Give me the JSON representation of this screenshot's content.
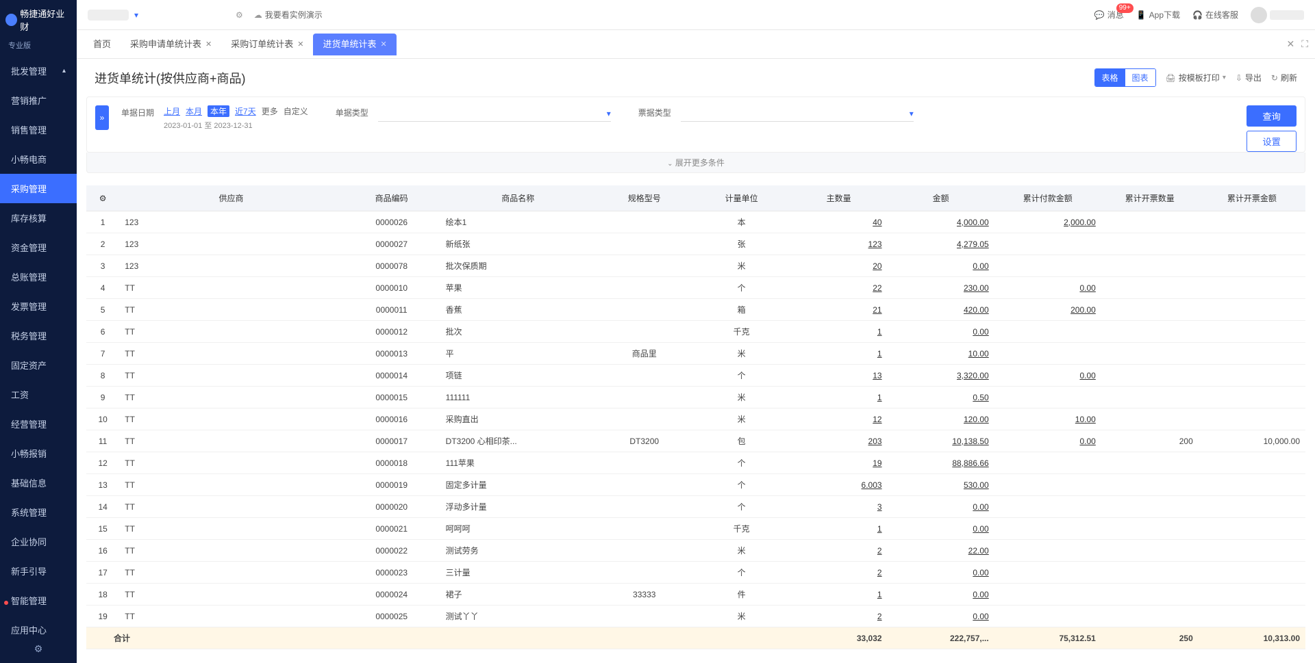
{
  "brand": {
    "name": "畅捷通好业财",
    "edition": "专业版"
  },
  "sidebar": {
    "items": [
      {
        "label": "批发管理",
        "expanded": true
      },
      {
        "label": "营销推广"
      },
      {
        "label": "销售管理"
      },
      {
        "label": "小畅电商"
      },
      {
        "label": "采购管理",
        "active": true
      },
      {
        "label": "库存核算"
      },
      {
        "label": "资金管理"
      },
      {
        "label": "总账管理"
      },
      {
        "label": "发票管理"
      },
      {
        "label": "税务管理"
      },
      {
        "label": "固定资产"
      },
      {
        "label": "工资"
      },
      {
        "label": "经营管理"
      },
      {
        "label": "小畅报销"
      },
      {
        "label": "基础信息"
      },
      {
        "label": "系统管理"
      },
      {
        "label": "企业协同"
      },
      {
        "label": "新手引导"
      },
      {
        "label": "智能管理",
        "dot": true
      },
      {
        "label": "应用中心"
      }
    ]
  },
  "topbar": {
    "demo": "我要看实例演示",
    "msg": "消息",
    "msg_badge": "99+",
    "app": "App下载",
    "service": "在线客服"
  },
  "tabs": {
    "items": [
      {
        "label": "首页",
        "closable": false
      },
      {
        "label": "采购申请单统计表",
        "closable": true
      },
      {
        "label": "采购订单统计表",
        "closable": true
      },
      {
        "label": "进货单统计表",
        "closable": true,
        "active": true
      }
    ]
  },
  "page": {
    "title": "进货单统计(按供应商+商品)",
    "toggle": {
      "a": "表格",
      "b": "图表"
    },
    "print": "按模板打印",
    "export": "导出",
    "refresh": "刷新"
  },
  "filter": {
    "date_label": "单据日期",
    "quick": [
      "上月",
      "本月",
      "本年",
      "近7天",
      "更多",
      "自定义"
    ],
    "quick_active": 2,
    "date_range": "2023-01-01 至 2023-12-31",
    "type_label": "单据类型",
    "invoice_label": "票据类型",
    "query": "查询",
    "settings": "设置",
    "expand": "展开更多条件"
  },
  "table": {
    "columns": [
      "供应商",
      "商品编码",
      "商品名称",
      "规格型号",
      "计量单位",
      "主数量",
      "金额",
      "累计付款金额",
      "累计开票数量",
      "累计开票金额"
    ],
    "rows": [
      {
        "i": 1,
        "supplier": "123",
        "code": "0000026",
        "name": "绘本1",
        "spec": "",
        "unit": "本",
        "qty": "40",
        "amt": "4,000.00",
        "paid": "2,000.00",
        "invqty": "",
        "invamt": ""
      },
      {
        "i": 2,
        "supplier": "123",
        "code": "0000027",
        "name": "新纸张",
        "spec": "",
        "unit": "张",
        "qty": "123",
        "amt": "4,279.05",
        "paid": "",
        "invqty": "",
        "invamt": ""
      },
      {
        "i": 3,
        "supplier": "123",
        "code": "0000078",
        "name": "批次保质期",
        "spec": "",
        "unit": "米",
        "qty": "20",
        "amt": "0.00",
        "paid": "",
        "invqty": "",
        "invamt": ""
      },
      {
        "i": 4,
        "supplier": "TT",
        "code": "0000010",
        "name": "苹果",
        "spec": "",
        "unit": "个",
        "qty": "22",
        "amt": "230.00",
        "paid": "0.00",
        "invqty": "",
        "invamt": ""
      },
      {
        "i": 5,
        "supplier": "TT",
        "code": "0000011",
        "name": "香蕉",
        "spec": "",
        "unit": "箱",
        "qty": "21",
        "amt": "420.00",
        "paid": "200.00",
        "invqty": "",
        "invamt": ""
      },
      {
        "i": 6,
        "supplier": "TT",
        "code": "0000012",
        "name": "批次",
        "spec": "",
        "unit": "千克",
        "qty": "1",
        "amt": "0.00",
        "paid": "",
        "invqty": "",
        "invamt": ""
      },
      {
        "i": 7,
        "supplier": "TT",
        "code": "0000013",
        "name": "平",
        "spec": "商品里",
        "unit": "米",
        "qty": "1",
        "amt": "10.00",
        "paid": "",
        "invqty": "",
        "invamt": ""
      },
      {
        "i": 8,
        "supplier": "TT",
        "code": "0000014",
        "name": "项链",
        "spec": "",
        "unit": "个",
        "qty": "13",
        "amt": "3,320.00",
        "paid": "0.00",
        "invqty": "",
        "invamt": ""
      },
      {
        "i": 9,
        "supplier": "TT",
        "code": "0000015",
        "name": "111111",
        "spec": "",
        "unit": "米",
        "qty": "1",
        "amt": "0.50",
        "paid": "",
        "invqty": "",
        "invamt": ""
      },
      {
        "i": 10,
        "supplier": "TT",
        "code": "0000016",
        "name": "采购直出",
        "spec": "",
        "unit": "米",
        "qty": "12",
        "amt": "120.00",
        "paid": "10.00",
        "invqty": "",
        "invamt": ""
      },
      {
        "i": 11,
        "supplier": "TT",
        "code": "0000017",
        "name": "DT3200 心相印茶...",
        "spec": "DT3200",
        "unit": "包",
        "qty": "203",
        "amt": "10,138.50",
        "paid": "0.00",
        "invqty": "200",
        "invamt": "10,000.00"
      },
      {
        "i": 12,
        "supplier": "TT",
        "code": "0000018",
        "name": "111苹果",
        "spec": "",
        "unit": "个",
        "qty": "19",
        "amt": "88,886.66",
        "paid": "",
        "invqty": "",
        "invamt": ""
      },
      {
        "i": 13,
        "supplier": "TT",
        "code": "0000019",
        "name": "固定多计量",
        "spec": "",
        "unit": "个",
        "qty": "6.003",
        "amt": "530.00",
        "paid": "",
        "invqty": "",
        "invamt": ""
      },
      {
        "i": 14,
        "supplier": "TT",
        "code": "0000020",
        "name": "浮动多计量",
        "spec": "",
        "unit": "个",
        "qty": "3",
        "amt": "0.00",
        "paid": "",
        "invqty": "",
        "invamt": ""
      },
      {
        "i": 15,
        "supplier": "TT",
        "code": "0000021",
        "name": "呵呵呵",
        "spec": "",
        "unit": "千克",
        "qty": "1",
        "amt": "0.00",
        "paid": "",
        "invqty": "",
        "invamt": ""
      },
      {
        "i": 16,
        "supplier": "TT",
        "code": "0000022",
        "name": "测试劳务",
        "spec": "",
        "unit": "米",
        "qty": "2",
        "amt": "22.00",
        "paid": "",
        "invqty": "",
        "invamt": ""
      },
      {
        "i": 17,
        "supplier": "TT",
        "code": "0000023",
        "name": "三计量",
        "spec": "",
        "unit": "个",
        "qty": "2",
        "amt": "0.00",
        "paid": "",
        "invqty": "",
        "invamt": ""
      },
      {
        "i": 18,
        "supplier": "TT",
        "code": "0000024",
        "name": "裙子",
        "spec": "33333",
        "unit": "件",
        "qty": "1",
        "amt": "0.00",
        "paid": "",
        "invqty": "",
        "invamt": ""
      },
      {
        "i": 19,
        "supplier": "TT",
        "code": "0000025",
        "name": "测试丫丫",
        "spec": "",
        "unit": "米",
        "qty": "2",
        "amt": "0.00",
        "paid": "",
        "invqty": "",
        "invamt": ""
      }
    ],
    "total": {
      "label": "合计",
      "qty": "33,032",
      "amt": "222,757,...",
      "paid": "75,312.51",
      "invqty": "250",
      "invamt": "10,313.00"
    }
  }
}
